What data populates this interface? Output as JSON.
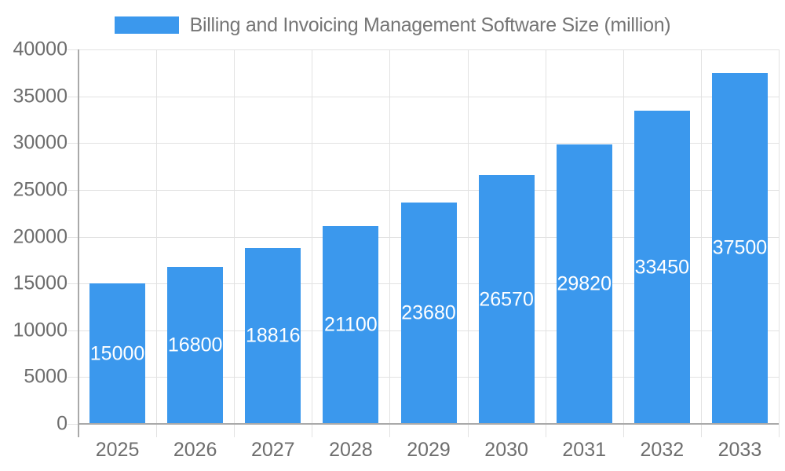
{
  "legend": {
    "label": "Billing and Invoicing Management Software Size (million)"
  },
  "chart_data": {
    "type": "bar",
    "title": "Billing and Invoicing Management Software Size (million)",
    "categories": [
      "2025",
      "2026",
      "2027",
      "2028",
      "2029",
      "2030",
      "2031",
      "2032",
      "2033"
    ],
    "values": [
      15000,
      16800,
      18816,
      21100,
      23680,
      26570,
      29820,
      33450,
      37500
    ],
    "xlabel": "",
    "ylabel": "",
    "ylim": [
      0,
      40000
    ],
    "yticks": [
      0,
      5000,
      10000,
      15000,
      20000,
      25000,
      30000,
      35000,
      40000
    ],
    "grid": true,
    "legend_position": "top-center",
    "value_labels": "inside-center-white"
  },
  "colors": {
    "bar": "#3B98ED",
    "grid": "#e2e2e2",
    "axis": "#a9a9a9",
    "tick_text": "#6e6e6e",
    "title_text": "#757575",
    "value_text": "#ffffff",
    "background": "#ffffff"
  }
}
